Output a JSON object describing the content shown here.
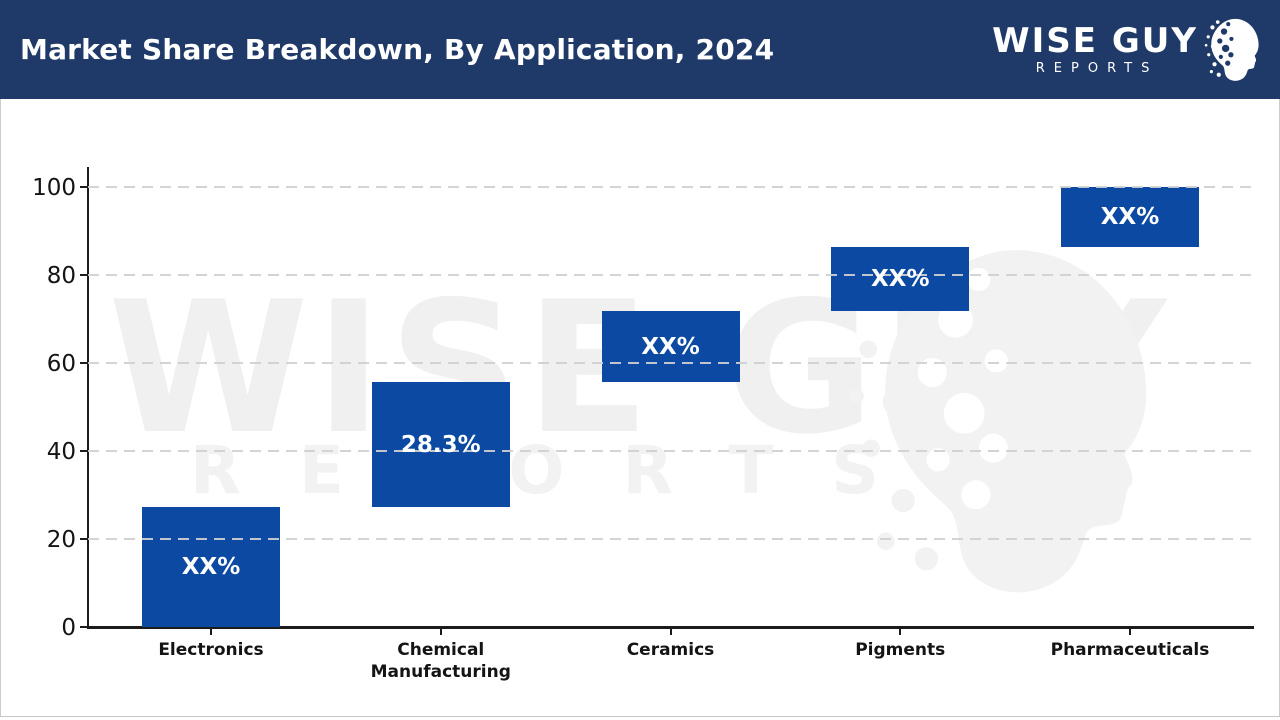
{
  "header": {
    "title": "Market Share Breakdown, By Application, 2024",
    "background_color": "#1f3a68",
    "logo": {
      "brand_top": "WISE GUY",
      "brand_bottom": "REPORTS",
      "icon": "dotted-head-profile-icon"
    }
  },
  "watermark": {
    "line1": "WISE GUY",
    "line2": "REPORTS",
    "icon": "dotted-head-profile-watermark",
    "color": "#f0f0f1"
  },
  "chart_data": {
    "type": "bar",
    "subtype": "waterfall",
    "title": "Market Share Breakdown, By Application, 2024",
    "categories": [
      "Electronics",
      "Chemical\nManufacturing",
      "Ceramics",
      "Pigments",
      "Pharmaceuticals"
    ],
    "segments": [
      {
        "category": "Electronics",
        "start": 0,
        "end": 27.3,
        "label": "XX%"
      },
      {
        "category": "Chemical Manufacturing",
        "start": 27.3,
        "end": 55.6,
        "label": "28.3%",
        "value": 28.3
      },
      {
        "category": "Ceramics",
        "start": 55.6,
        "end": 71.9,
        "label": "XX%"
      },
      {
        "category": "Pigments",
        "start": 71.9,
        "end": 86.4,
        "label": "XX%"
      },
      {
        "category": "Pharmaceuticals",
        "start": 86.4,
        "end": 100,
        "label": "XX%"
      }
    ],
    "y_ticks": [
      0,
      20,
      40,
      60,
      80,
      100
    ],
    "ylim": [
      0,
      105
    ],
    "xlabel": "",
    "ylabel": "",
    "grid": "horizontal dashed, drawn above bars",
    "legend": "none",
    "bar_color": "#0b49a2",
    "bar_label_color": "#ffffff",
    "grid_color": "#d0d0d0",
    "axis_color": "#1c1c1c"
  }
}
